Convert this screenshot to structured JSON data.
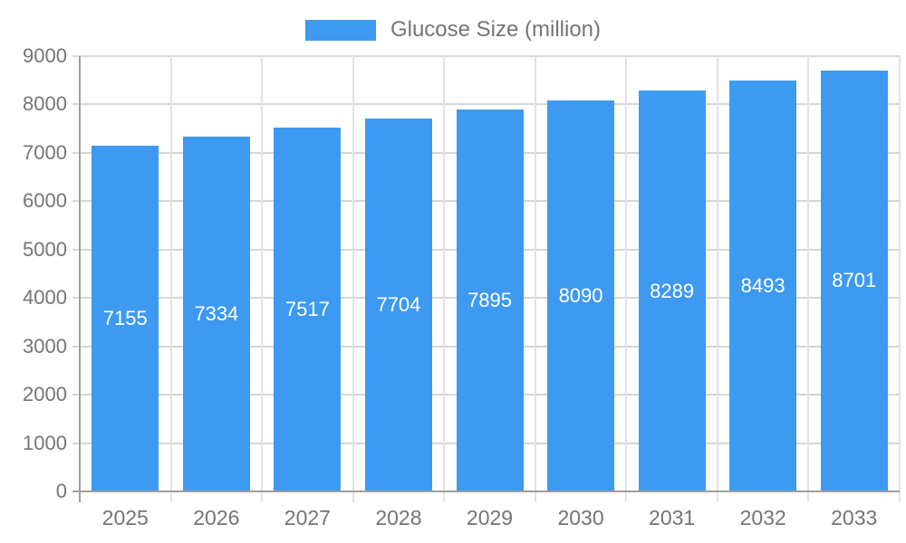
{
  "chart_data": {
    "type": "bar",
    "title": "",
    "legend": "Glucose Size (million)",
    "legend_position": "top-center",
    "categories": [
      "2025",
      "2026",
      "2027",
      "2028",
      "2029",
      "2030",
      "2031",
      "2032",
      "2033"
    ],
    "series": [
      {
        "name": "Glucose Size (million)",
        "values": [
          7155,
          7334,
          7517,
          7704,
          7895,
          8090,
          8289,
          8493,
          8701
        ]
      }
    ],
    "xlabel": "",
    "ylabel": "",
    "ylim": [
      0,
      9000
    ],
    "yticks": [
      0,
      1000,
      2000,
      3000,
      4000,
      5000,
      6000,
      7000,
      8000,
      9000
    ],
    "grid": true,
    "value_labels": "inside-bar-centered",
    "colors": {
      "bar": "#3d9af0",
      "value_label": "#ffffff",
      "axis_text": "#757575",
      "grid_h": "#d6d6d6",
      "grid_v": "#e3e3e3",
      "axis_line": "#9e9e9e",
      "background": "#ffffff"
    }
  }
}
